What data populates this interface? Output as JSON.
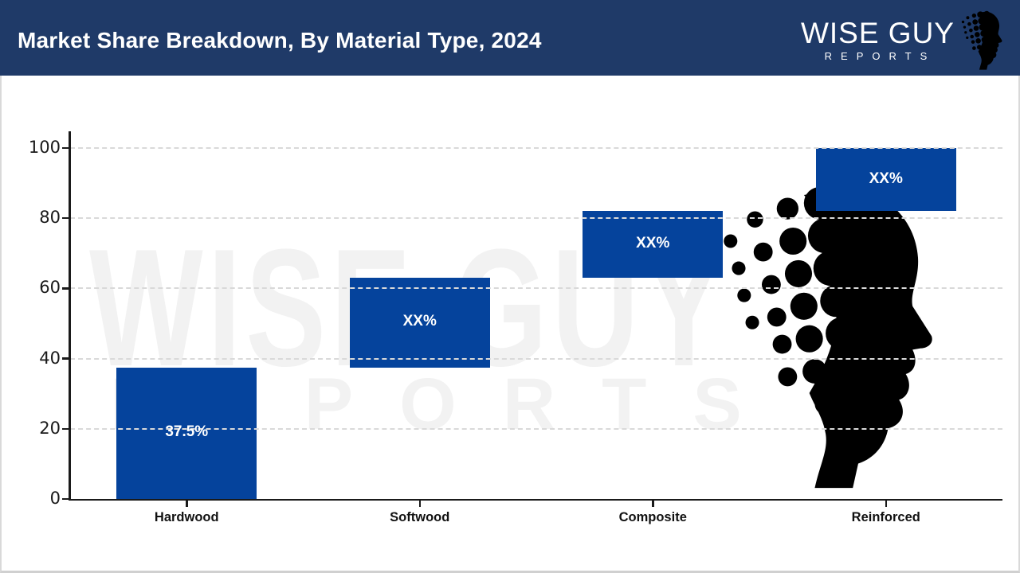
{
  "header": {
    "title": "Market Share Breakdown, By Material Type, 2024",
    "logo": {
      "line1": "WISE GUY",
      "line2": "REPORTS"
    }
  },
  "watermark": {
    "line1": "WISE GUY",
    "line2": "REPORTS"
  },
  "chart_data": {
    "type": "bar",
    "subtype": "waterfall",
    "title": "Market Share Breakdown, By Material Type, 2024",
    "categories": [
      "Hardwood",
      "Softwood",
      "Composite",
      "Reinforced"
    ],
    "segments": [
      {
        "category": "Hardwood",
        "start": 0,
        "end": 37.5,
        "label": "37.5%"
      },
      {
        "category": "Softwood",
        "start": 37.5,
        "end": 63,
        "label": "XX%"
      },
      {
        "category": "Composite",
        "start": 63,
        "end": 82,
        "label": "XX%"
      },
      {
        "category": "Reinforced",
        "start": 82,
        "end": 100,
        "label": "XX%"
      }
    ],
    "xlabel": "",
    "ylabel": "",
    "ylim": [
      0,
      100
    ],
    "yticks": [
      0,
      20,
      40,
      60,
      80,
      100
    ],
    "grid": "dashed-horizontal",
    "legend": "none",
    "bar_color": "#05439c",
    "label_color": "#ffffff"
  },
  "colors": {
    "header_bg": "#1f3a68",
    "bar": "#05439c",
    "gridline": "#d9d9d9",
    "axis": "#1a1a1a",
    "watermark": "#f2f2f2"
  }
}
